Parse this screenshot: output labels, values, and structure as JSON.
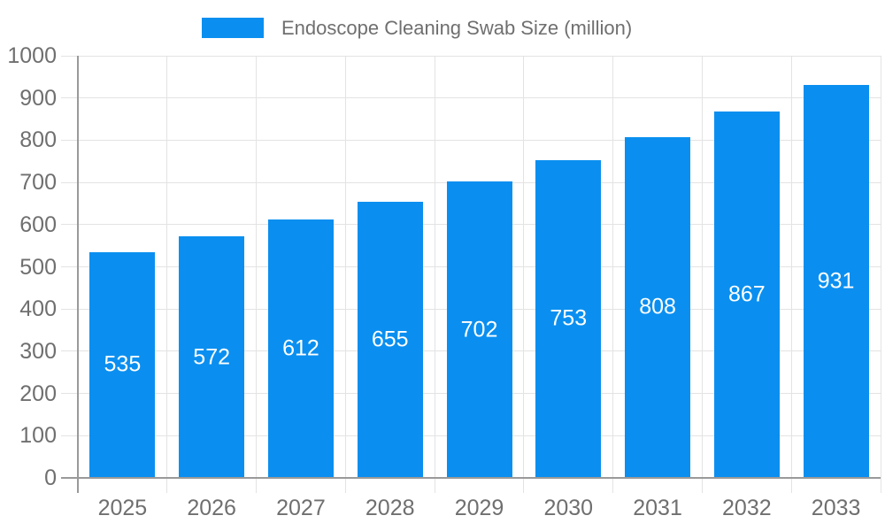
{
  "chart_data": {
    "type": "bar",
    "legend_label": "Endoscope Cleaning Swab Size (million)",
    "legend_position": "top-center",
    "categories": [
      "2025",
      "2026",
      "2027",
      "2028",
      "2029",
      "2030",
      "2031",
      "2032",
      "2033"
    ],
    "values": [
      535,
      572,
      612,
      655,
      702,
      753,
      808,
      867,
      931
    ],
    "xlabel": "",
    "ylabel": "",
    "ylim": [
      0,
      1000
    ],
    "ytick_step": 100,
    "grid": true,
    "value_labels": "centered-inside-bars",
    "colors": {
      "bar": "#0a8ff0",
      "value_label": "#ffffff",
      "axis_text": "#6f6f6f",
      "axis_line": "#9a9a9a",
      "gridline": "#e3e3e3",
      "background": "#ffffff"
    }
  }
}
